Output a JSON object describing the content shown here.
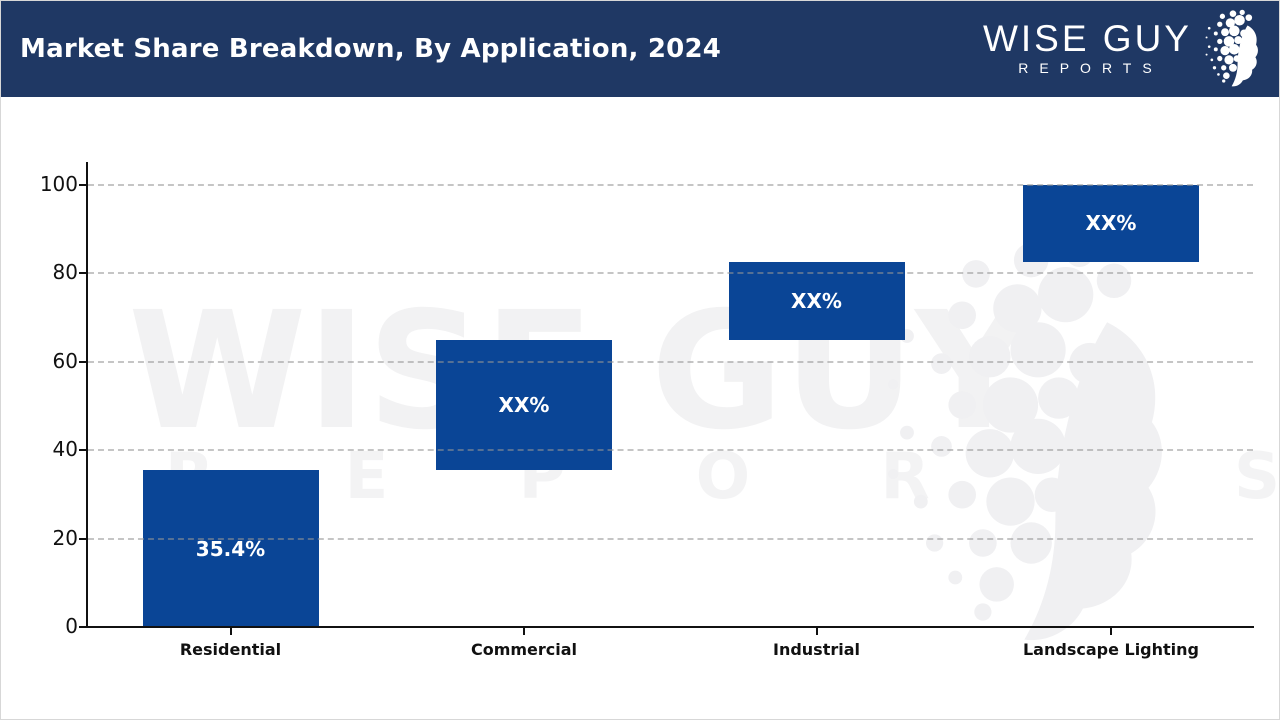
{
  "header": {
    "title": "Market Share Breakdown, By Application, 2024",
    "logo": {
      "line1": "WISE GUY",
      "line2": "REPORTS"
    }
  },
  "watermark": {
    "line1": "WISE GUY",
    "line2": "R E P O R T S"
  },
  "chart_data": {
    "type": "bar",
    "subtype": "floating-waterfall",
    "title": "Market Share Breakdown, By Application, 2024",
    "categories": [
      "Residential",
      "Commercial",
      "Industrial",
      "Landscape Lighting"
    ],
    "series": [
      {
        "name": "Market Share",
        "segments": [
          {
            "category": "Residential",
            "from": 0,
            "to": 35.4,
            "label": "35.4%"
          },
          {
            "category": "Commercial",
            "from": 35.4,
            "to": 64.8,
            "label": "XX%"
          },
          {
            "category": "Industrial",
            "from": 64.8,
            "to": 82.4,
            "label": "XX%"
          },
          {
            "category": "Landscape Lighting",
            "from": 82.4,
            "to": 100,
            "label": "XX%"
          }
        ]
      }
    ],
    "xlabel": "",
    "ylabel": "",
    "ylim": [
      0,
      100
    ],
    "yticks": [
      0,
      20,
      40,
      60,
      80,
      100
    ],
    "grid": "horizontal-dashed-over-bars",
    "legend": "none",
    "bar_color": "#0a4596",
    "bar_label_color": "#ffffff",
    "axis_color": "#111111",
    "header_bg": "#1f3864",
    "watermark_color": "#f2f2f3"
  }
}
